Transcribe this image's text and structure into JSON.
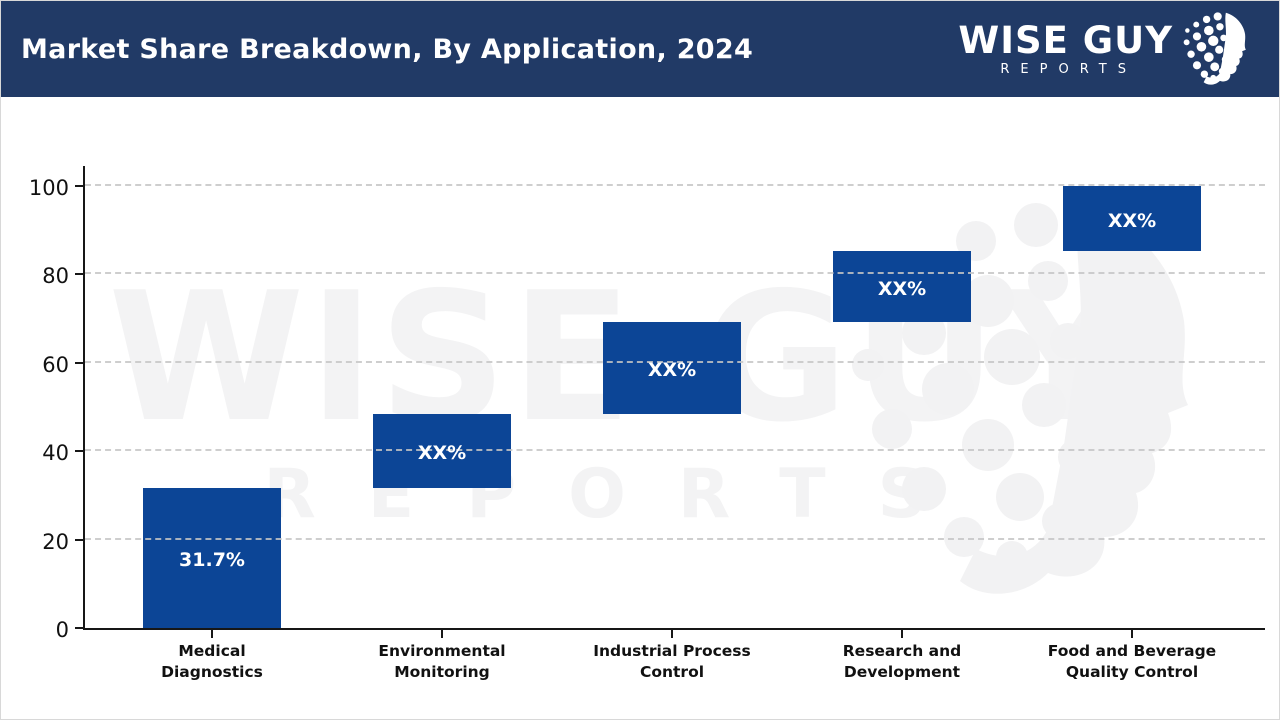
{
  "header": {
    "title": "Market Share Breakdown, By Application, 2024",
    "bg_color": "#213a66",
    "logo": {
      "line1": "WISE GUY",
      "line2": "REPORTS",
      "icon": "dotted-face-profile"
    }
  },
  "watermark": {
    "line1": "WISE GUY",
    "line2": "REPORTS"
  },
  "chart_data": {
    "type": "bar",
    "subtype": "floating-waterfall",
    "title": "Market Share Breakdown, By Application, 2024",
    "categories": [
      "Medical\nDiagnostics",
      "Environmental\nMonitoring",
      "Industrial Process\nControl",
      "Research and\nDevelopment",
      "Food and Beverage\nQuality Control"
    ],
    "bars": [
      {
        "label": "31.7%",
        "start": 0,
        "end": 31.7
      },
      {
        "label": "XX%",
        "start": 31.7,
        "end": 48.4
      },
      {
        "label": "XX%",
        "start": 48.4,
        "end": 69.3
      },
      {
        "label": "XX%",
        "start": 69.3,
        "end": 85.2
      },
      {
        "label": "XX%",
        "start": 85.2,
        "end": 100
      }
    ],
    "xlabel": "",
    "ylabel": "",
    "ylim": [
      0,
      100
    ],
    "yticks": [
      0,
      20,
      40,
      60,
      80,
      100
    ],
    "grid": "dashed-horizontal",
    "legend": "none",
    "bar_color": "#0c4596",
    "bar_label_color": "#ffffff",
    "axis_color": "#171717"
  }
}
